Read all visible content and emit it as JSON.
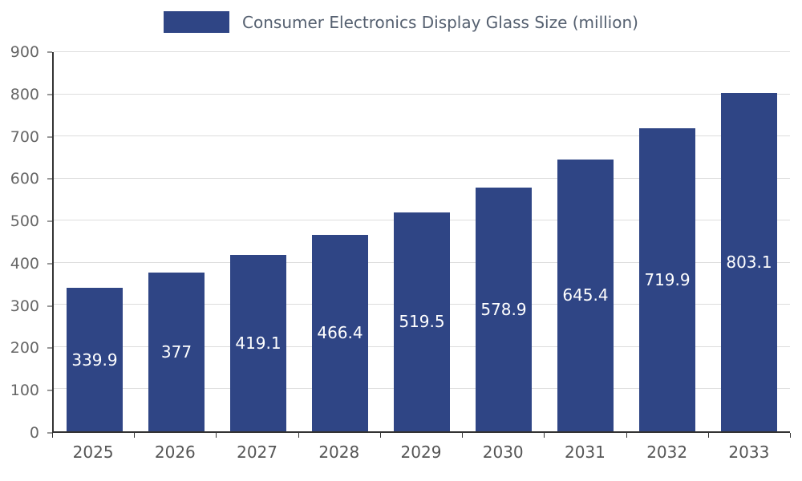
{
  "chart_data": {
    "type": "bar",
    "title": "Consumer Electronics Display Glass Size (million)",
    "categories": [
      "2025",
      "2026",
      "2027",
      "2028",
      "2029",
      "2030",
      "2031",
      "2032",
      "2033"
    ],
    "values": [
      339.9,
      377,
      419.1,
      466.4,
      519.5,
      578.9,
      645.4,
      719.9,
      803.1
    ],
    "value_labels": [
      "339.9",
      "377",
      "419.1",
      "466.4",
      "519.5",
      "578.9",
      "645.4",
      "719.9",
      "803.1"
    ],
    "xlabel": "",
    "ylabel": "",
    "ylim": [
      0,
      900
    ],
    "yticks": [
      0,
      100,
      200,
      300,
      400,
      500,
      600,
      700,
      800,
      900
    ],
    "ytick_labels": [
      "0",
      "100",
      "200",
      "300",
      "400",
      "500",
      "600",
      "700",
      "800",
      "900"
    ],
    "grid": true,
    "legend_position": "top",
    "colors": {
      "bar": "#2f4585",
      "value_label": "#ffffff",
      "grid": "#dddddd",
      "axis": "#333333",
      "tick_label": "#666666",
      "xtick_label": "#555555",
      "title": "#556070"
    }
  }
}
